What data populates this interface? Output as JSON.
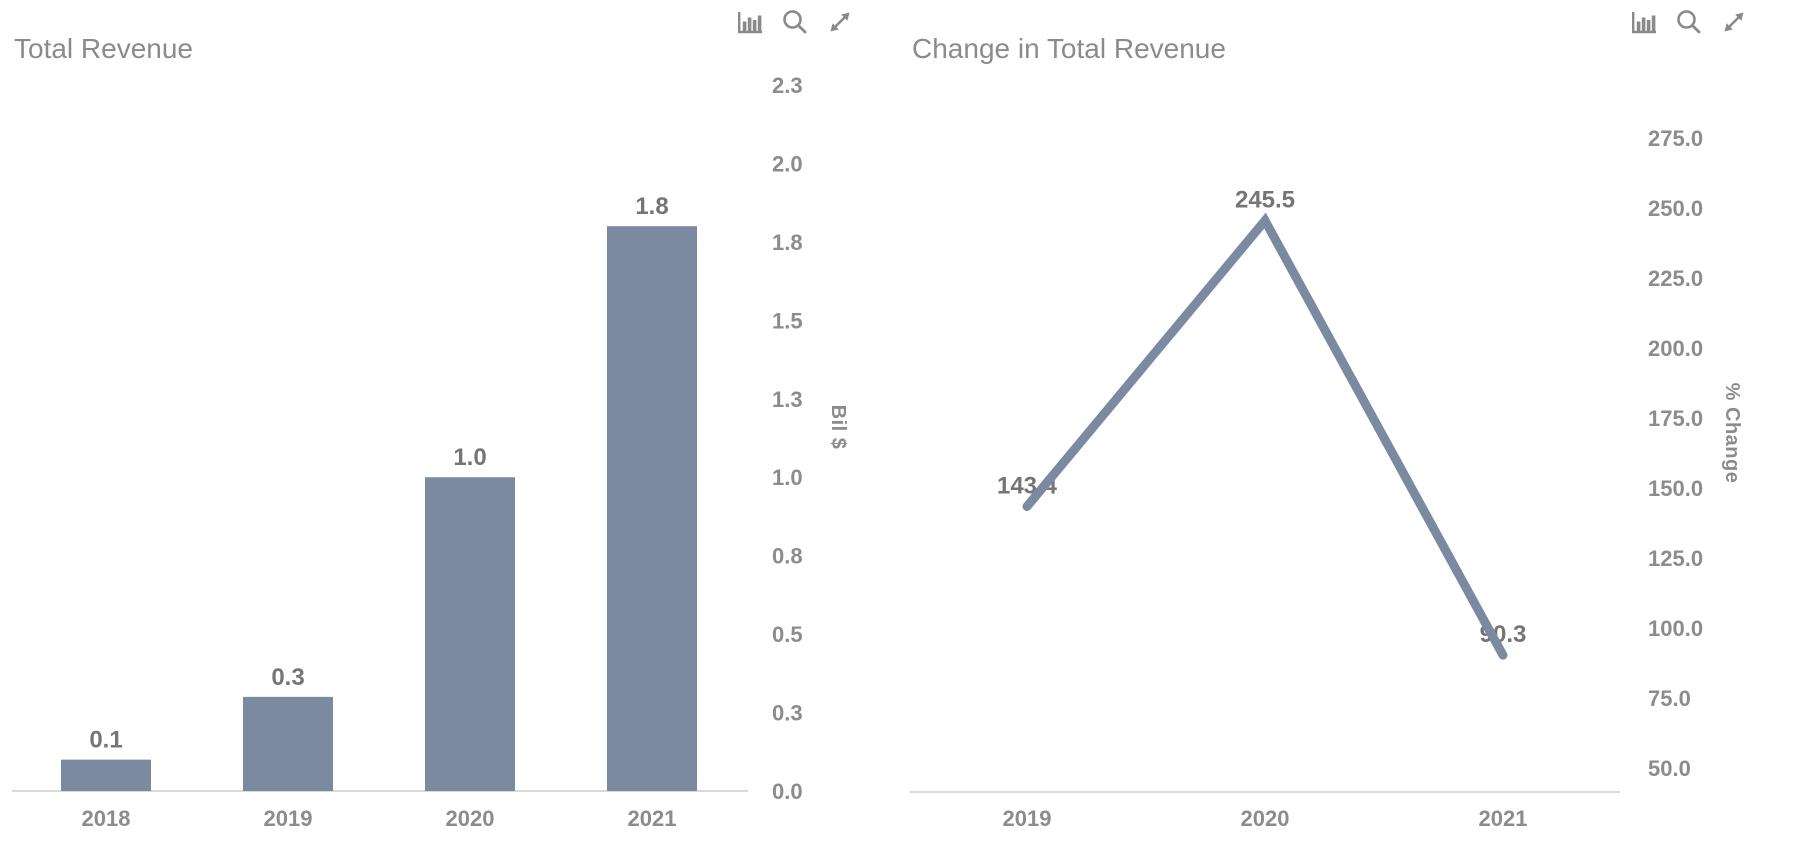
{
  "colors": {
    "series": "#7B89A1",
    "title": "#8B8B8B",
    "tick_label": "#8C8C8C",
    "data_label": "#757575",
    "axis_line": "#D9D9D9",
    "icon": "#8A8A8A",
    "background": "#FFFFFF"
  },
  "toolbar": {
    "icons": [
      "bar-chart-icon",
      "zoom-icon",
      "expand-icon"
    ]
  },
  "chart_data": [
    {
      "type": "bar",
      "title": "Total Revenue",
      "categories": [
        "2018",
        "2019",
        "2020",
        "2021"
      ],
      "values": [
        0.1,
        0.3,
        1.0,
        1.8
      ],
      "point_labels": [
        "0.1",
        "0.3",
        "1.0",
        "1.8"
      ],
      "xlabel": "",
      "ylabel": "Bil $",
      "ylim": [
        0.0,
        2.25
      ],
      "y_axis": {
        "side": "right",
        "tick_labels": [
          "2.3",
          "2.0",
          "1.8",
          "1.5",
          "1.3",
          "1.0",
          "0.8",
          "0.5",
          "0.3",
          "0.0"
        ],
        "tick_values": [
          2.25,
          2.0,
          1.75,
          1.5,
          1.25,
          1.0,
          0.75,
          0.5,
          0.25,
          0.0
        ]
      },
      "grid": false,
      "legend": null,
      "color": "#7B89A1"
    },
    {
      "type": "line",
      "title": "Change in Total Revenue",
      "categories": [
        "2019",
        "2020",
        "2021"
      ],
      "values": [
        143.4,
        245.5,
        90.3
      ],
      "point_labels": [
        "143.4",
        "245.5",
        "90.3"
      ],
      "xlabel": "",
      "ylabel": "% Change",
      "ylim": [
        41.0,
        278.0
      ],
      "y_axis": {
        "side": "right",
        "tick_labels": [
          "275.0",
          "250.0",
          "225.0",
          "200.0",
          "175.0",
          "150.0",
          "125.0",
          "100.0",
          "75.0",
          "50.0"
        ],
        "tick_values": [
          275,
          250,
          225,
          200,
          175,
          150,
          125,
          100,
          75,
          50
        ]
      },
      "grid": false,
      "legend": null,
      "color": "#7B89A1"
    }
  ]
}
